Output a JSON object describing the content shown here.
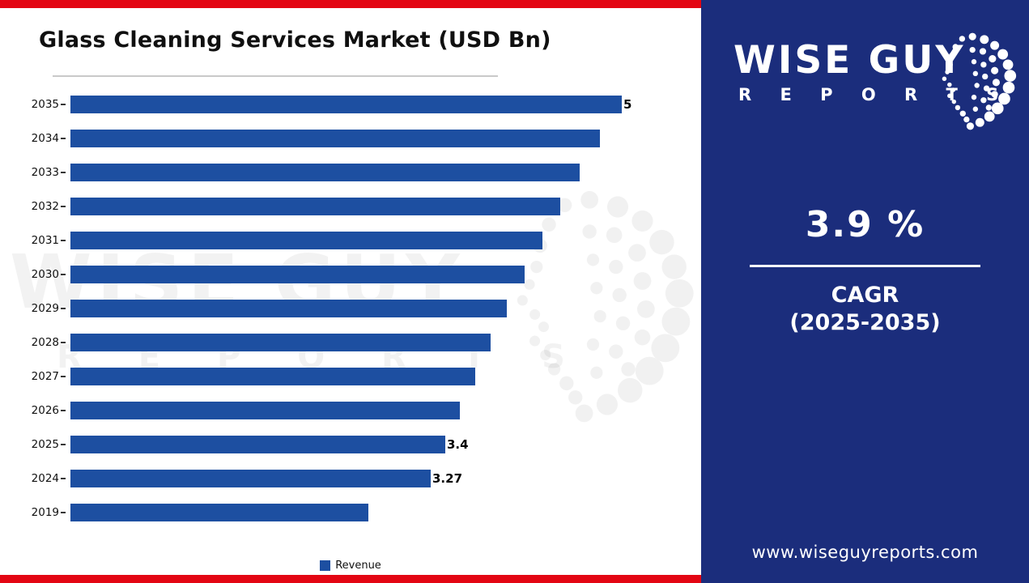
{
  "colors": {
    "accent_red": "#e30613",
    "panel_navy": "#1b2d7c",
    "bar_blue": "#1d4fa1"
  },
  "chart_data": {
    "type": "bar",
    "orientation": "horizontal",
    "title": "Glass Cleaning Services Market (USD Bn)",
    "categories": [
      "2035",
      "2034",
      "2033",
      "2032",
      "2031",
      "2030",
      "2029",
      "2028",
      "2027",
      "2026",
      "2025",
      "2024",
      "2019"
    ],
    "values": [
      5,
      4.8,
      4.62,
      4.44,
      4.28,
      4.12,
      3.96,
      3.81,
      3.67,
      3.53,
      3.4,
      3.27,
      2.7
    ],
    "value_labels": [
      "5",
      "",
      "",
      "",
      "",
      "",
      "",
      "",
      "",
      "",
      "3.4",
      "3.27",
      ""
    ],
    "xlim": [
      0,
      5
    ],
    "xlabel": "",
    "ylabel": "",
    "grid": false,
    "legend": [
      "Revenue"
    ],
    "legend_position": "bottom-center",
    "series_color": "#1d4fa1"
  },
  "watermark": {
    "line1": "WISE GUY",
    "line2": "R E P O R T S"
  },
  "sidebar": {
    "logo_line1": "WISE GUY",
    "logo_line2": "R E P O R T S",
    "cagr_value": "3.9 %",
    "cagr_label_line1": "CAGR",
    "cagr_label_line2": "(2025-2035)",
    "website": "www.wiseguyreports.com"
  }
}
